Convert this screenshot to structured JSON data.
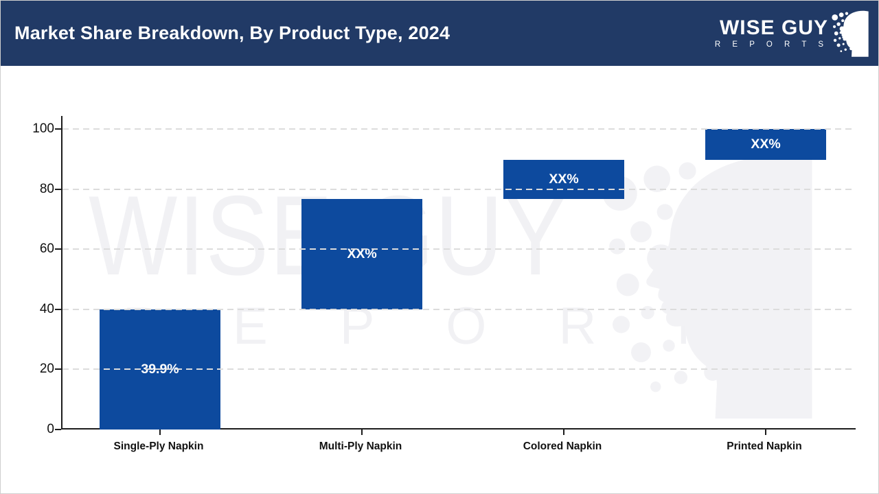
{
  "header": {
    "title": "Market Share Breakdown, By Product Type, 2024",
    "bg_color": "#213a66",
    "logo": {
      "line1": "WISE GUY",
      "line2": "R E P O R T S"
    }
  },
  "watermark": {
    "line1": "WISE GUY",
    "line2": "R E P O R T S"
  },
  "chart_data": {
    "type": "bar",
    "subtype": "waterfall",
    "title": "Market Share Breakdown, By Product Type, 2024",
    "categories": [
      "Single-Ply Napkin",
      "Multi-Ply Napkin",
      "Colored Napkin",
      "Printed Napkin"
    ],
    "segments": [
      {
        "category": "Single-Ply Napkin",
        "start": 0,
        "end": 39.9,
        "label": "39.9%"
      },
      {
        "category": "Multi-Ply Napkin",
        "start": 39.9,
        "end": 76.8,
        "label": "XX%"
      },
      {
        "category": "Colored Napkin",
        "start": 76.8,
        "end": 89.7,
        "label": "XX%"
      },
      {
        "category": "Printed Napkin",
        "start": 89.7,
        "end": 100,
        "label": "XX%"
      }
    ],
    "yticks": [
      0,
      20,
      40,
      60,
      80,
      100
    ],
    "ylim": [
      0,
      100
    ],
    "xlabel": "",
    "ylabel": "",
    "grid": "dashed-horizontal",
    "legend": "none",
    "bar_color": "#0d4a9e",
    "bar_label_color": "#ffffff",
    "axis_color": "#1c1c1c"
  }
}
